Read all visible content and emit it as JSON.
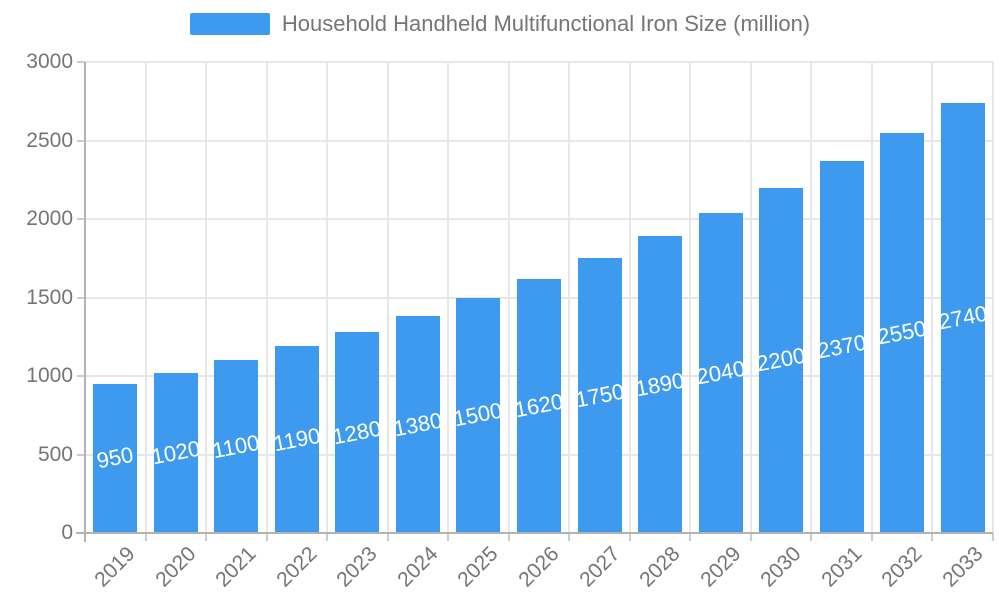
{
  "chart_data": {
    "type": "bar",
    "legend": "Household Handheld Multifunctional Iron Size (million)",
    "legend_position": "top",
    "categories": [
      "2019",
      "2020",
      "2021",
      "2022",
      "2023",
      "2024",
      "2025",
      "2026",
      "2027",
      "2028",
      "2029",
      "2030",
      "2031",
      "2032",
      "2033"
    ],
    "values": [
      950,
      1020,
      1100,
      1190,
      1280,
      1380,
      1500,
      1620,
      1750,
      1890,
      2040,
      2200,
      2370,
      2550,
      2740
    ],
    "title": "",
    "xlabel": "",
    "ylabel": "",
    "ylim": [
      0,
      3000
    ],
    "yticks": [
      0,
      500,
      1000,
      1500,
      2000,
      2500,
      3000
    ],
    "grid": true,
    "bar_labels_shown": true,
    "x_tick_label_rotation_deg": -45,
    "bar_label_rotation_deg": -11,
    "colors": {
      "bar": "#3e9aee",
      "axis_text": "#757575",
      "legend_text": "#757575",
      "value_label_text": "#ffffff",
      "grid_line": "#e7e7e7",
      "axis_line": "#b3b3b3",
      "tick_mark": "#cccccc",
      "background": "#ffffff"
    }
  }
}
